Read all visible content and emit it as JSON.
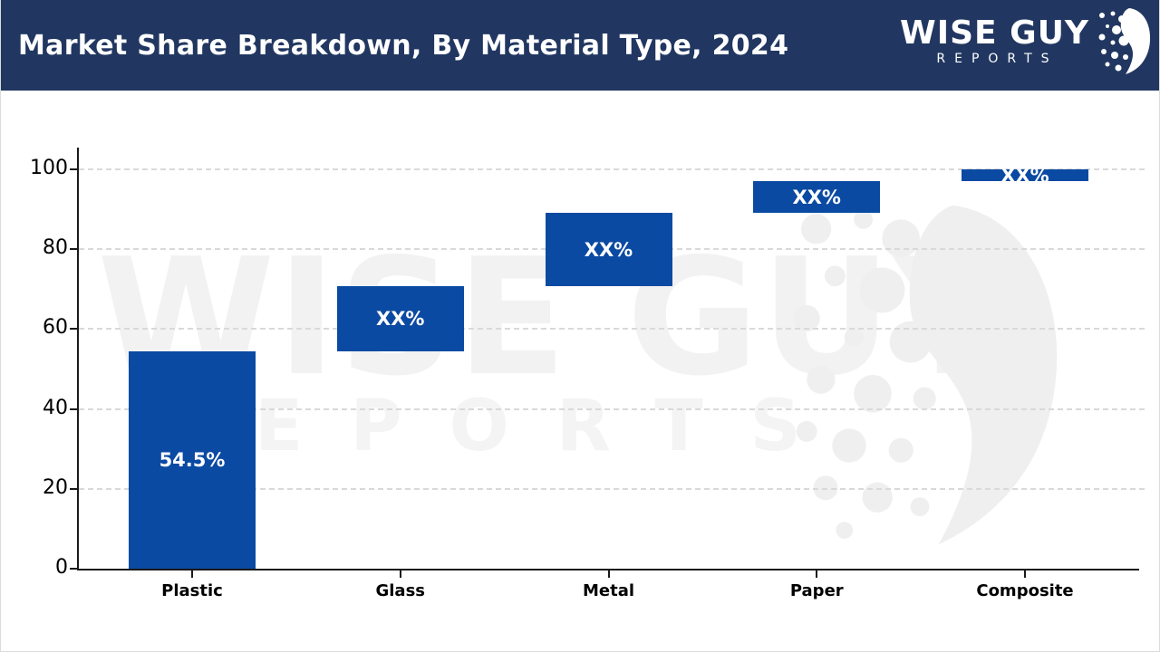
{
  "header": {
    "title": "Market Share Breakdown, By Material Type, 2024",
    "bg_color": "#213761",
    "logo": {
      "wordmark": "WISE GUY",
      "sub": "REPORTS"
    }
  },
  "watermark": {
    "line1": "WISE GUY",
    "line2": "REPORTS"
  },
  "colors": {
    "header_bg": "#213761",
    "bar": "#0b4aa2",
    "bar_label": "#ffffff",
    "grid": "#d9d9d9",
    "axis": "#1a1a1a",
    "watermark": "#f2f2f2"
  },
  "chart_data": {
    "type": "bar",
    "subtype": "waterfall",
    "title": "Market Share Breakdown, By Material Type, 2024",
    "categories": [
      "Plastic",
      "Glass",
      "Metal",
      "Paper",
      "Composite"
    ],
    "segments": [
      {
        "category": "Plastic",
        "start": 0,
        "end": 54.5,
        "increment": 54.5,
        "label": "54.5%"
      },
      {
        "category": "Glass",
        "start": 54.5,
        "end": 70.7,
        "increment": 16.2,
        "label": "XX%"
      },
      {
        "category": "Metal",
        "start": 70.7,
        "end": 89.1,
        "increment": 18.4,
        "label": "XX%"
      },
      {
        "category": "Paper",
        "start": 89.1,
        "end": 97.0,
        "increment": 7.9,
        "label": "XX%"
      },
      {
        "category": "Composite",
        "start": 97.0,
        "end": 100.0,
        "increment": 3.0,
        "label": "XX%"
      }
    ],
    "yticks": [
      0,
      20,
      40,
      60,
      80,
      100
    ],
    "ylim": [
      0,
      105
    ],
    "xlabel": "",
    "ylabel": "",
    "grid": "horizontal-dashed",
    "legend": "none",
    "bar_color": "#0b4aa2",
    "label_color": "#ffffff"
  }
}
